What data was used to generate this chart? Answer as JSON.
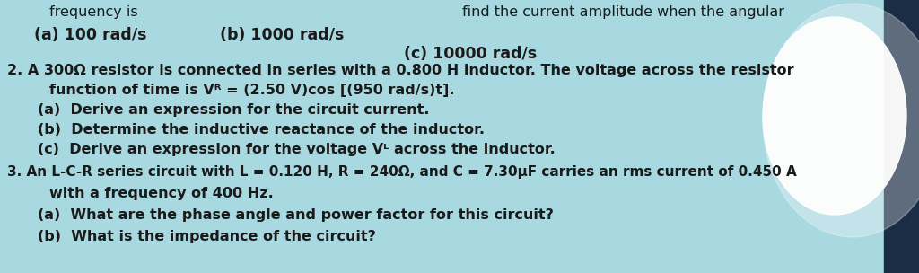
{
  "background_color": "#a8d8e0",
  "text_color": "#1a1a1a",
  "line1_left": "frequency is",
  "line1_right": "find the current amplitude when the angular",
  "line2a": "(a) 100 rad/s",
  "line2b": "(b) 1000 rad/s",
  "line2c": "(c) 10000 rad/s",
  "line3": "2. A 300Ω resistor is connected in series with a 0.800 H inductor. The voltage across the resistor",
  "line4": "function of time is Vᴿ = (2.50 V)cos [(950 rad/s)t].",
  "line5": "(a)  Derive an expression for the circuit current.",
  "line6": "(b)  Determine the inductive reactance of the inductor.",
  "line7": "(c)  Derive an expression for the voltage Vᴸ across the inductor.",
  "line8": "3. An L-C-R series circuit with L = 0.120 H, R = 240Ω, and C = 7.30μF carries an rms current of 0.450 A",
  "line9": "with a frequency of 400 Hz.",
  "line10": "(a)  What are the phase angle and power factor for this circuit?",
  "line11": "(b)  What is the impedance of the circuit?"
}
